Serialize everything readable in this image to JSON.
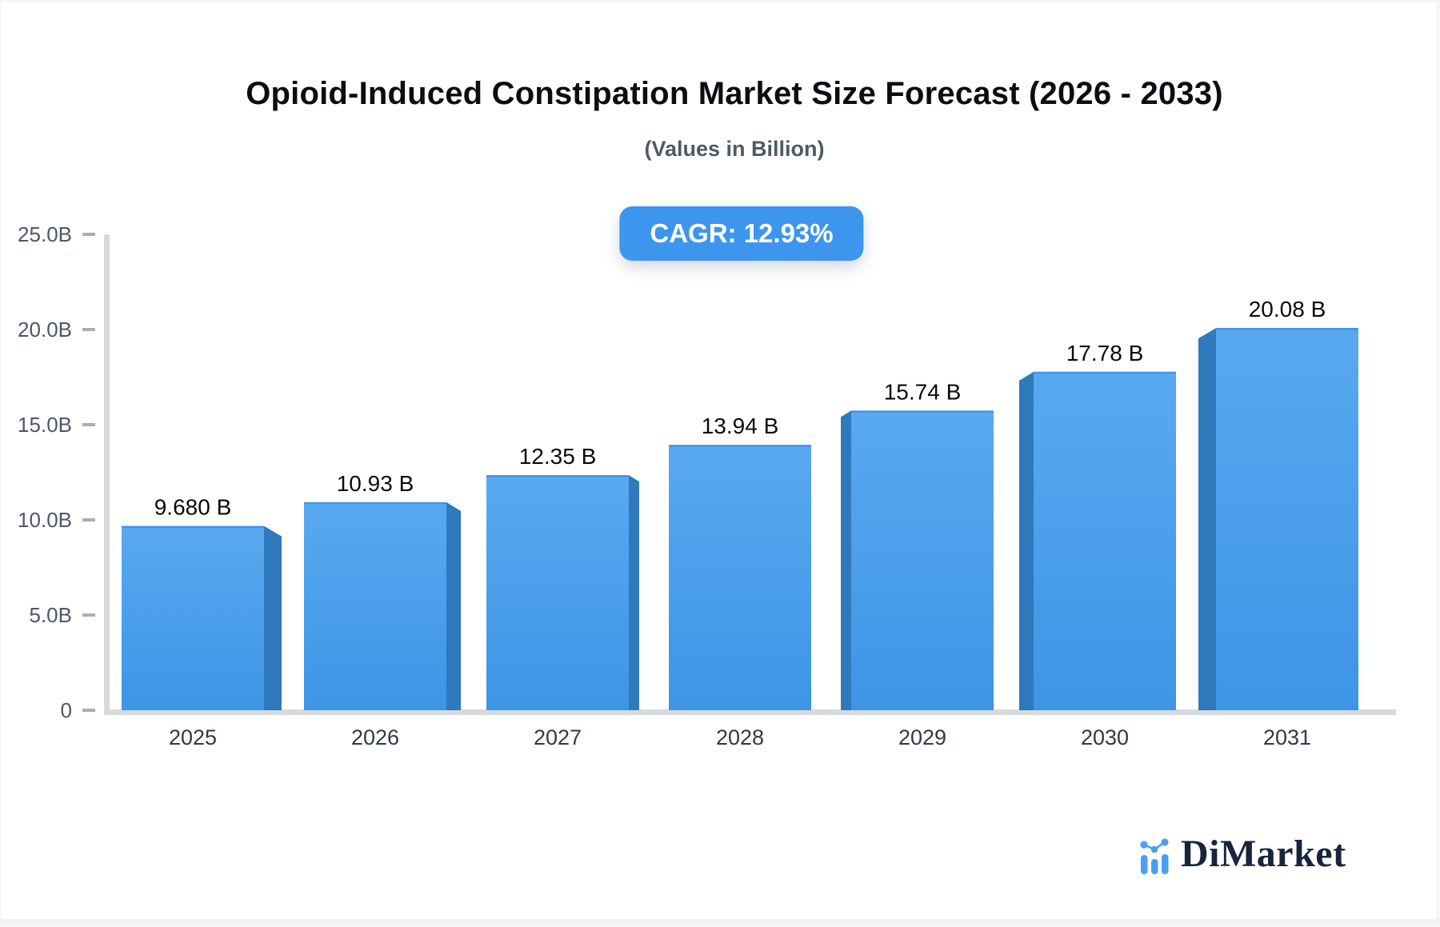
{
  "page": {
    "background": "#f4f6f8",
    "card_background": "#ffffff"
  },
  "header": {
    "title": "Opioid-Induced Constipation Market Size Forecast (2026 - 2033)",
    "subtitle": "(Values in Billion)",
    "cagr_label": "CAGR: 12.93%"
  },
  "badge": {
    "background": "#3d96ee",
    "text_color": "#ffffff"
  },
  "chart_data": {
    "type": "bar",
    "categories": [
      "2025",
      "2026",
      "2027",
      "2028",
      "2029",
      "2030",
      "2031"
    ],
    "values": [
      9.68,
      10.93,
      12.35,
      13.94,
      15.74,
      17.78,
      20.08
    ],
    "bar_labels": [
      "9.680 B",
      "10.93 B",
      "12.35 B",
      "13.94 B",
      "15.74 B",
      "17.78 B",
      "20.08 B"
    ],
    "title": "Opioid-Induced Constipation Market Size Forecast (2026 - 2033)",
    "subtitle": "(Values in Billion)",
    "cagr": "12.93%",
    "xlabel": "",
    "ylabel": "",
    "ylim": [
      0,
      25
    ],
    "ytick_values": [
      0,
      5,
      10,
      15,
      20,
      25
    ],
    "ytick_labels": [
      "0",
      "5.0B",
      "10.0B",
      "15.0B",
      "20.0B",
      "25.0B"
    ],
    "grid": false,
    "legend": false,
    "style_3d": true,
    "bar_face_color_top": "#58a9f0",
    "bar_face_color_bottom": "#3e95e6",
    "bar_top_edge_color": "#4295e4",
    "bar_side_color": "#2e7abc"
  },
  "axis": {
    "line_color": "#d6dade",
    "tick_dash_color": "#a6aeb6",
    "tick_text_color": "#4c5868",
    "category_text_color": "#2f3a49",
    "value_label_color": "#0a0a0a"
  },
  "logo": {
    "text": "DiMarket",
    "text_color": "#16253c",
    "icon_color": "#4c9ef3",
    "icon_name": "bar-chart-logo-icon"
  }
}
